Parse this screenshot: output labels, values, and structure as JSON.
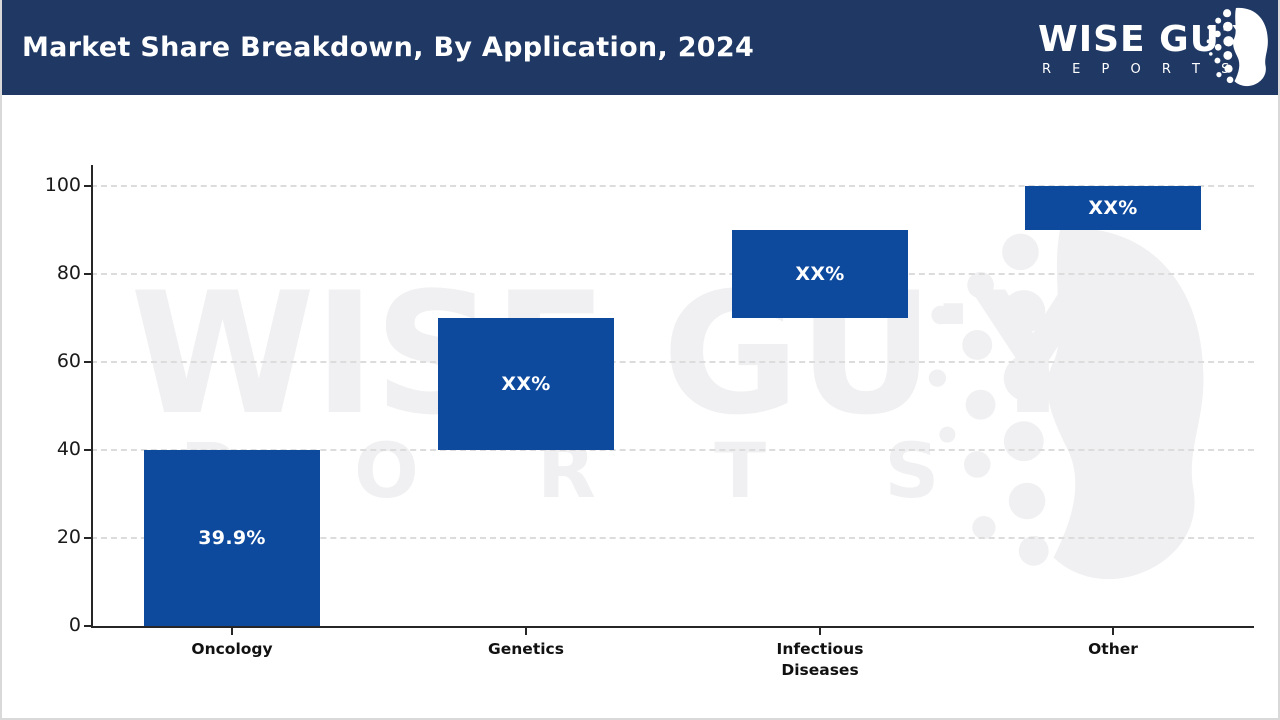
{
  "header": {
    "title": "Market Share Breakdown, By Application, 2024",
    "logo": {
      "line1_left": "WISE GU",
      "line1_dot": "·",
      "line1_right": "Y",
      "line2": "R E P O R T S"
    }
  },
  "watermark": {
    "line1_left": "WISE GU",
    "line1_dot": "·",
    "line1_right": "Y",
    "line2": "P O R T S"
  },
  "chart_data": {
    "type": "bar",
    "subtype": "waterfall",
    "title": "Market Share Breakdown, By Application, 2024",
    "categories": [
      "Oncology",
      "Genetics",
      "Infectious Diseases",
      "Other"
    ],
    "segments": [
      {
        "category": "Oncology",
        "start": 0,
        "end": 39.9,
        "label": "39.9%"
      },
      {
        "category": "Genetics",
        "start": 39.9,
        "end": 69.9,
        "label": "XX%"
      },
      {
        "category": "Infectious Diseases",
        "start": 69.9,
        "end": 89.9,
        "label": "XX%"
      },
      {
        "category": "Other",
        "start": 89.9,
        "end": 100,
        "label": "XX%"
      }
    ],
    "values_shown": [
      "39.9%",
      "XX%",
      "XX%",
      "XX%"
    ],
    "yticks": [
      0,
      20,
      40,
      60,
      80,
      100
    ],
    "ylim": [
      0,
      105
    ],
    "xlabel": "",
    "ylabel": "",
    "grid": "horizontal-dashed",
    "legend": "none",
    "bar_color": "#0d4a9e",
    "bar_label_color": "#ffffff",
    "grid_color": "#dcdcdc",
    "spine_color": "#262626",
    "header_color": "#1f3864",
    "watermark_color": "#f0f0f2"
  }
}
